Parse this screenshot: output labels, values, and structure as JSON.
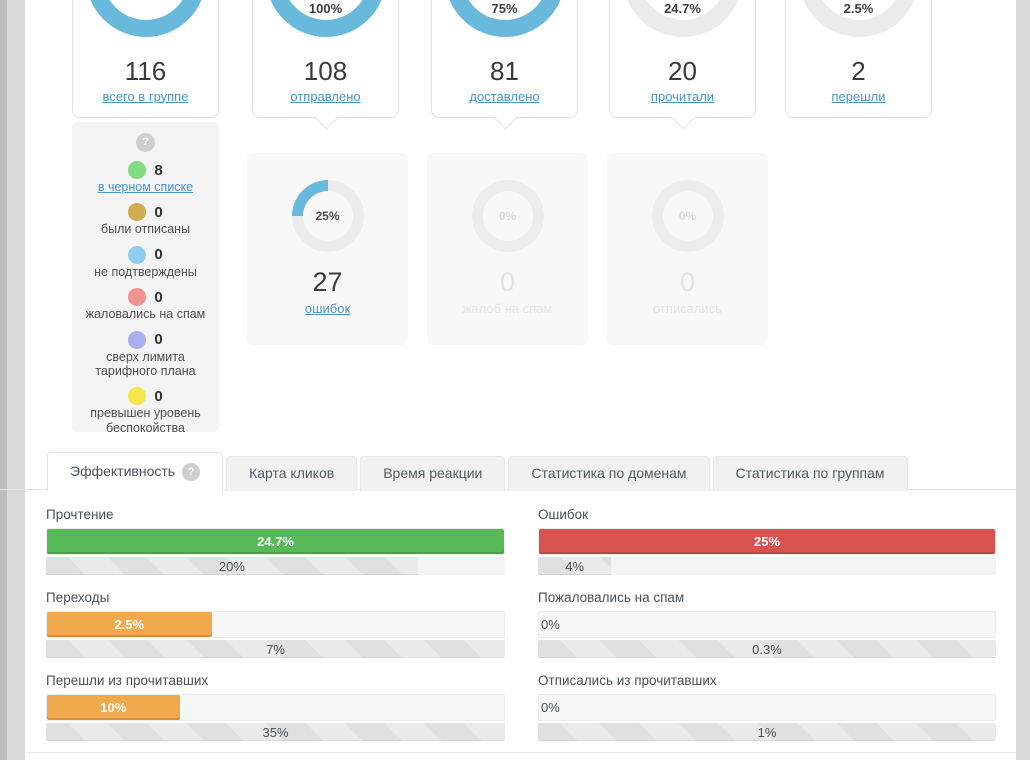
{
  "colors": {
    "accent_blue": "#69b9dc",
    "donut_track": "#ebebeb",
    "green": "#57b957",
    "red": "#d65350",
    "orange": "#f0a94c"
  },
  "summary_cards": [
    {
      "value": "116",
      "label": "всего в группе",
      "percent_label": "",
      "percent": 100
    },
    {
      "value": "108",
      "label": "отправлено",
      "percent_label": "100%",
      "percent": 100
    },
    {
      "value": "81",
      "label": "доставлено",
      "percent_label": "75%",
      "percent": 75
    },
    {
      "value": "20",
      "label": "прочитали",
      "percent_label": "24.7%",
      "percent": 24.7
    },
    {
      "value": "2",
      "label": "перешли",
      "percent_label": "2.5%",
      "percent": 2.5
    }
  ],
  "legend": {
    "help": "?",
    "items": [
      {
        "color": "#81dc81",
        "value": "8",
        "label": "в черном списке"
      },
      {
        "color": "#d0ac4e",
        "value": "0",
        "label": "были отписаны"
      },
      {
        "color": "#90cef1",
        "value": "0",
        "label": "не подтверждены"
      },
      {
        "color": "#f19490",
        "value": "0",
        "label": "жаловались на спам"
      },
      {
        "color": "#abafec",
        "value": "0",
        "label": "сверх лимита тарифного плана"
      },
      {
        "color": "#f5e74e",
        "value": "0",
        "label": "превышен уровень беспокойства"
      }
    ]
  },
  "secondary_cards": [
    {
      "value": "27",
      "label": "ошибок",
      "percent_label": "25%",
      "percent": 25
    },
    {
      "value": "0",
      "label": "жалоб на спам",
      "percent_label": "0%",
      "percent": 0
    },
    {
      "value": "0",
      "label": "отписались",
      "percent_label": "0%",
      "percent": 0
    }
  ],
  "tabs": [
    {
      "label": "Эффективность",
      "help": "?"
    },
    {
      "label": "Карта кликов"
    },
    {
      "label": "Время реакции"
    },
    {
      "label": "Статистика по доменам"
    },
    {
      "label": "Статистика по группам"
    }
  ],
  "chart_data": {
    "type": "bar",
    "title": "Эффективность рассылки",
    "series": [
      {
        "name": "Прочтение",
        "value": 24.7,
        "value_label": "24.7%",
        "value_pct": 100,
        "average": 20,
        "avg_label": "20%",
        "avg_pct": 81
      },
      {
        "name": "Ошибок",
        "value": 25,
        "value_label": "25%",
        "value_pct": 100,
        "average": 4,
        "avg_label": "4%",
        "avg_pct": 16
      },
      {
        "name": "Переходы",
        "value": 2.5,
        "value_label": "2.5%",
        "value_pct": 36,
        "average": 7,
        "avg_label": "7%",
        "avg_pct": 100
      },
      {
        "name": "Пожаловались на спам",
        "value": 0,
        "value_label": "0%",
        "value_pct": 0,
        "average": 0.3,
        "avg_label": "0.3%",
        "avg_pct": 100
      },
      {
        "name": "Перешли из прочитавших",
        "value": 10,
        "value_label": "10%",
        "value_pct": 29,
        "average": 35,
        "avg_label": "35%",
        "avg_pct": 100
      },
      {
        "name": "Отписались из прочитавших",
        "value": 0,
        "value_label": "0%",
        "value_pct": 0,
        "average": 1,
        "avg_label": "1%",
        "avg_pct": 100
      }
    ]
  },
  "metrics": {
    "left": [
      {
        "title": "Прочтение",
        "value": "24.7%",
        "value_pct": 100,
        "avg": "20%",
        "avg_pct": 81
      },
      {
        "title": "Переходы",
        "value": "2.5%",
        "value_pct": 36,
        "avg": "7%",
        "avg_pct": 100
      },
      {
        "title": "Перешли из прочитавших",
        "value": "10%",
        "value_pct": 29,
        "avg": "35%",
        "avg_pct": 100
      }
    ],
    "right": [
      {
        "title": "Ошибок",
        "value": "25%",
        "value_pct": 100,
        "avg": "4%",
        "avg_pct": 16
      },
      {
        "title": "Пожаловались на спам",
        "value": "0%",
        "value_pct": 0,
        "avg": "0.3%",
        "avg_pct": 100
      },
      {
        "title": "Отписались из прочитавших",
        "value": "0%",
        "value_pct": 0,
        "avg": "1%",
        "avg_pct": 100
      }
    ]
  }
}
